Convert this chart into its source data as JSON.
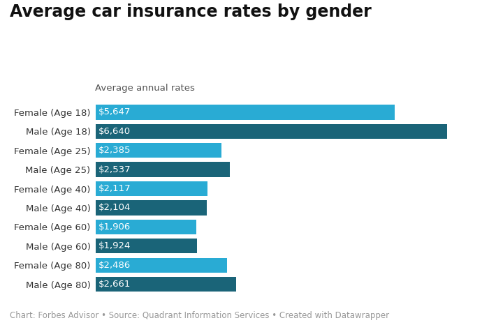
{
  "title": "Average car insurance rates by gender",
  "subtitle": "Average annual rates",
  "categories": [
    "Female (Age 18)",
    "Male (Age 18)",
    "Female (Age 25)",
    "Male (Age 25)",
    "Female (Age 40)",
    "Male (Age 40)",
    "Female (Age 60)",
    "Male (Age 60)",
    "Female (Age 80)",
    "Male (Age 80)"
  ],
  "values": [
    5647,
    6640,
    2385,
    2537,
    2117,
    2104,
    1906,
    1924,
    2486,
    2661
  ],
  "labels": [
    "$5,647",
    "$6,640",
    "$2,385",
    "$2,537",
    "$2,117",
    "$2,104",
    "$1,906",
    "$1,924",
    "$2,486",
    "$2,661"
  ],
  "colors": [
    "#29ABD4",
    "#1A6478",
    "#29ABD4",
    "#1A6478",
    "#29ABD4",
    "#1A6478",
    "#29ABD4",
    "#1A6478",
    "#29ABD4",
    "#1A6478"
  ],
  "footer": "Chart: Forbes Advisor • Source: Quadrant Information Services • Created with Datawrapper",
  "background_color": "#ffffff",
  "title_fontsize": 17,
  "subtitle_fontsize": 9.5,
  "label_fontsize": 9.5,
  "category_fontsize": 9.5,
  "footer_fontsize": 8.5,
  "xlim": 7200
}
